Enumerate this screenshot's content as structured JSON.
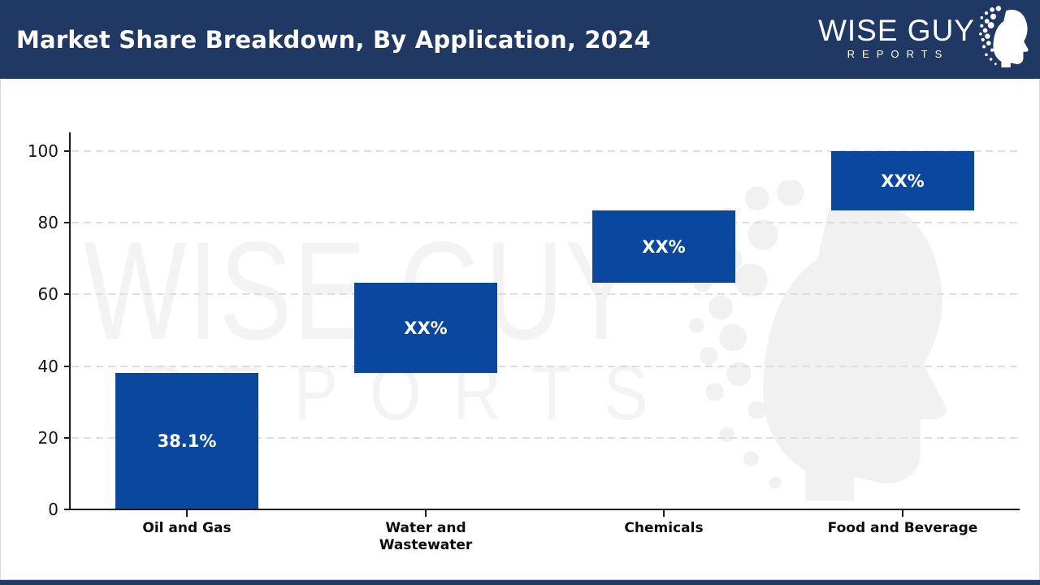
{
  "header": {
    "title": "Market Share Breakdown, By Application, 2024",
    "logo": {
      "line1": "WISE GUY",
      "line2": "REPORTS"
    }
  },
  "watermark": {
    "line1": "WISE GUY",
    "line2": "REPORTS"
  },
  "colors": {
    "header_bg": "#1f3864",
    "footer_bg": "#1f3864",
    "bar": "#0a479e",
    "bar_label": "#ffffff",
    "grid": "#dedede",
    "axis": "#1c1c1c",
    "tick_text": "#141414",
    "watermark": "#f3f3f3"
  },
  "chart_data": {
    "type": "bar",
    "subtype": "waterfall",
    "title": "Market Share Breakdown, By Application, 2024",
    "categories": [
      "Oil and Gas",
      "Water and Wastewater",
      "Chemicals",
      "Food and Beverage"
    ],
    "tick_labels": [
      "Oil and Gas",
      "Water and\nWastewater",
      "Chemicals",
      "Food and Beverage"
    ],
    "segments": [
      {
        "category": "Oil and Gas",
        "start": 0,
        "end": 38.1,
        "value": 38.1,
        "label": "38.1%"
      },
      {
        "category": "Water and Wastewater",
        "start": 38.1,
        "end": 63.2,
        "value": 25.1,
        "label": "XX%"
      },
      {
        "category": "Chemicals",
        "start": 63.2,
        "end": 83.4,
        "value": 20.2,
        "label": "XX%"
      },
      {
        "category": "Food and Beverage",
        "start": 83.4,
        "end": 100,
        "value": 16.6,
        "label": "XX%"
      }
    ],
    "xlabel": "",
    "ylabel": "",
    "ylim": [
      0,
      100
    ],
    "yticks": [
      0,
      20,
      40,
      60,
      80,
      100
    ],
    "grid": "horizontal-dashed",
    "legend": "none",
    "bar_color": "#0a479e",
    "label_note": "XX% are placeholder labels; numeric start/end estimated from axis"
  }
}
